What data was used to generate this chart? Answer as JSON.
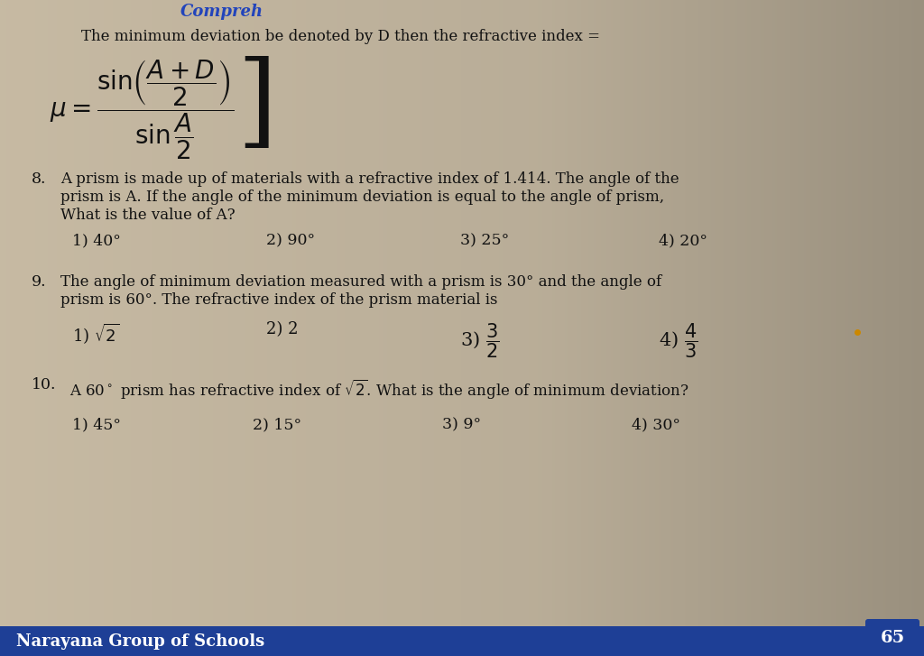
{
  "bg_color": "#c8bfa8",
  "bg_color_right": "#b8a898",
  "header_text": "Compreh",
  "header_color": "#2244bb",
  "intro_text": "The minimum deviation be denoted by D then the refractive index =",
  "q8_text_line1": "A prism is made up of materials with a refractive index of 1.414. The angle of the",
  "q8_text_line2": "prism is A. If the angle of the minimum deviation is equal to the angle of prism,",
  "q8_text_line3": "What is the value of A?",
  "q8_options": [
    "1) 40°",
    "2) 90°",
    "3) 25°",
    "4) 20°"
  ],
  "q9_text_line1": "The angle of minimum deviation measured with a prism is 30° and the angle of",
  "q9_text_line2": "prism is 60°. The refractive index of the prism material is",
  "q10_text": "A 60° prism has refractive index of √2. What is the angle of minimum deviation?",
  "q10_options": [
    "1) 45°",
    "2) 15°",
    "3) 9°",
    "4) 30°"
  ],
  "footer_text": "Narayana Group of Schools",
  "footer_bg": "#1e3f96",
  "footer_text_color": "#ffffff",
  "page_number": "65",
  "page_num_bg": "#1e3f96",
  "page_num_color": "#ffffff",
  "text_color": "#111111",
  "serif_font": "DejaVu Serif"
}
